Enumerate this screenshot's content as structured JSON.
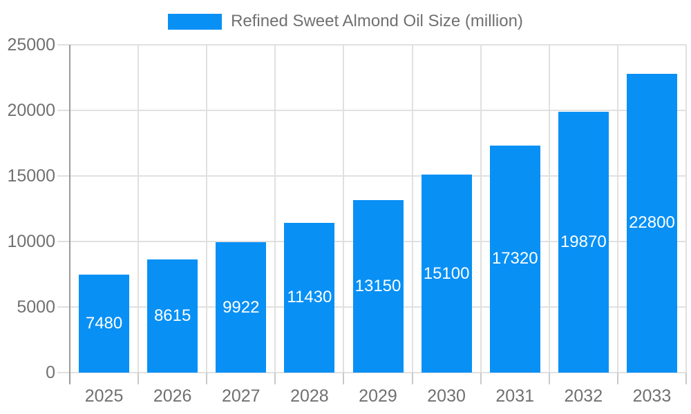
{
  "legend": {
    "series_label": "Refined Sweet Almond Oil Size (million)"
  },
  "chart_data": {
    "type": "bar",
    "title": "Refined Sweet Almond Oil Size (million)",
    "categories": [
      "2025",
      "2026",
      "2027",
      "2028",
      "2029",
      "2030",
      "2031",
      "2032",
      "2033"
    ],
    "values": [
      7480,
      8615,
      9922,
      11430,
      13150,
      15100,
      17320,
      19870,
      22800
    ],
    "xlabel": "",
    "ylabel": "",
    "ylim": [
      0,
      25000
    ],
    "yticks": [
      0,
      5000,
      10000,
      15000,
      20000,
      25000
    ],
    "grid": true,
    "legend_position": "top",
    "colors": {
      "bar": "#0890f5",
      "grid": "#e0e0e0",
      "axis_line": "#9a9a9a",
      "tick": "#c9c9c9",
      "axis_text": "#707070",
      "value_label": "#ffffff",
      "background": "#ffffff"
    }
  }
}
